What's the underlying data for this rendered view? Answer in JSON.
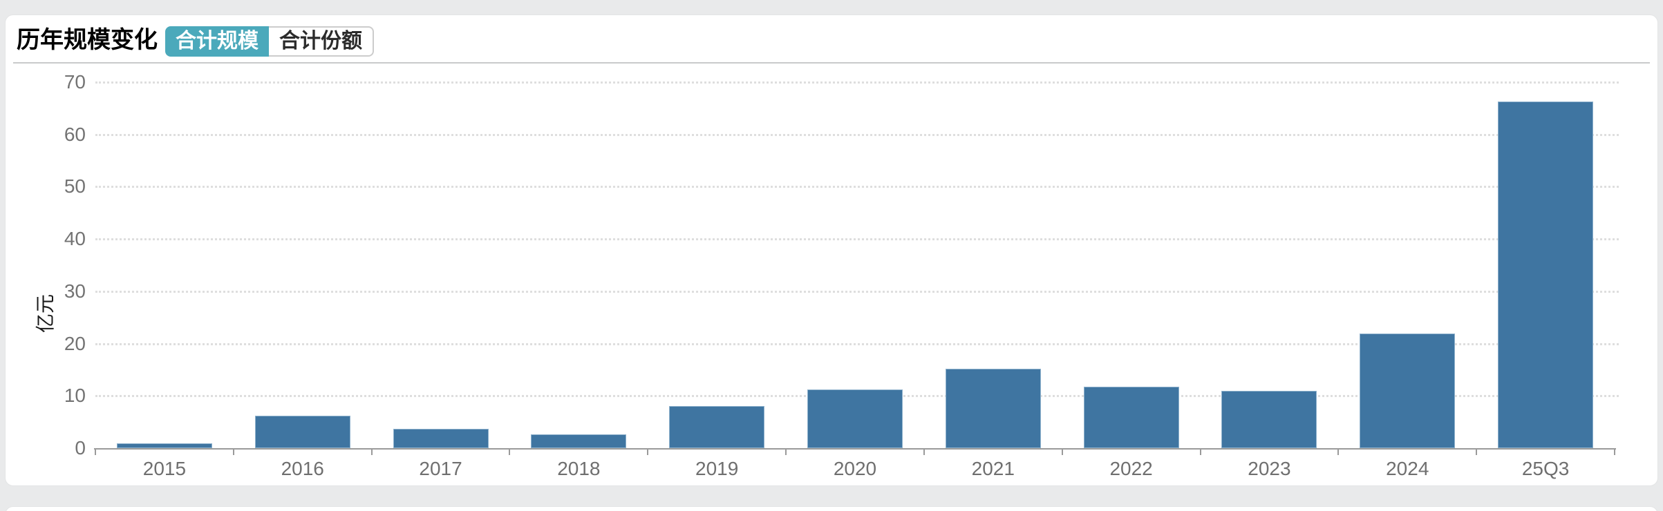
{
  "header": {
    "title": "历年规模变化",
    "tabs": [
      {
        "label": "合计规模",
        "active": true
      },
      {
        "label": "合计份额",
        "active": false
      }
    ]
  },
  "colors": {
    "active_tab_bg": "#4ba9bb",
    "active_tab_text": "#ffffff",
    "bar": "#3f75a1",
    "page_bg": "#e9eaeb",
    "axis_line": "#9a9a9a",
    "gridline": "#dedede",
    "y_tick_label": "#737373",
    "x_tick_label": "#6f6f6f"
  },
  "chart_data": {
    "type": "bar",
    "title": "历年规模变化",
    "categories": [
      "2015",
      "2016",
      "2017",
      "2018",
      "2019",
      "2020",
      "2021",
      "2022",
      "2023",
      "2024",
      "25Q3"
    ],
    "values": [
      0.9,
      6.2,
      3.7,
      2.6,
      8.0,
      11.2,
      15.2,
      11.7,
      11.0,
      21.9,
      66.3
    ],
    "xlabel": "",
    "ylabel": "亿元",
    "ylim": [
      0,
      70
    ],
    "yticks": [
      0,
      10,
      20,
      30,
      40,
      50,
      60,
      70
    ],
    "grid": "horizontal-dotted",
    "legend": "none"
  }
}
